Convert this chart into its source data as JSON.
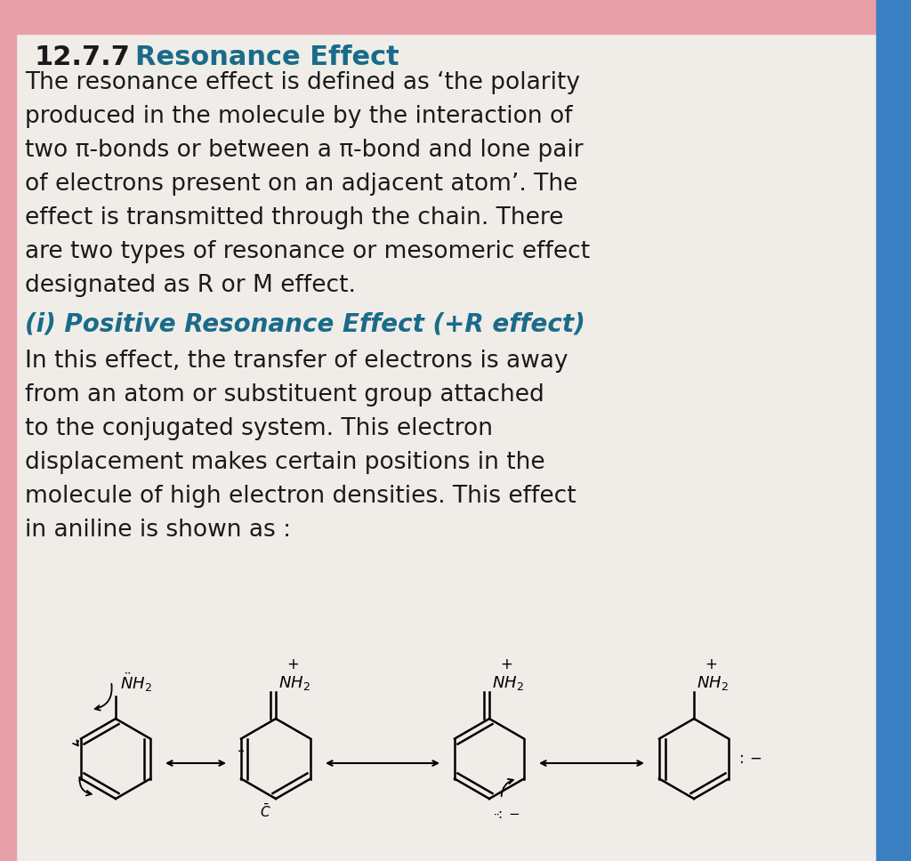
{
  "bg_color": "#f0ede8",
  "title_number": "12.7.7",
  "title_text": "Resonance Effect",
  "title_color": "#1a6b8a",
  "title_fontsize": 22,
  "body_text_color": "#1a1a1a",
  "body_fontsize": 19,
  "subheading_color": "#1a6b8a",
  "subheading_fontsize": 20,
  "paragraph1": "The resonance effect is defined as ‘the polarity\nproduced in the molecule by the interaction of\ntwo π-bonds or between a π-bond and lone pair\nof electrons present on an adjacent atom’. The\neffect is transmitted through the chain. There\nare two types of resonance or mesomeric effect\ndesignated as R or M effect.",
  "subheading": "(i) Positive Resonance Effect (+R effect)",
  "paragraph2": "In this effect, the transfer of electrons is away\nfrom an atom or substituent group attached\nto the conjugated system. This electron\ndisplacement makes certain positions in the\nmolecule of high electron densities. This effect\nin aniline is shown as :"
}
